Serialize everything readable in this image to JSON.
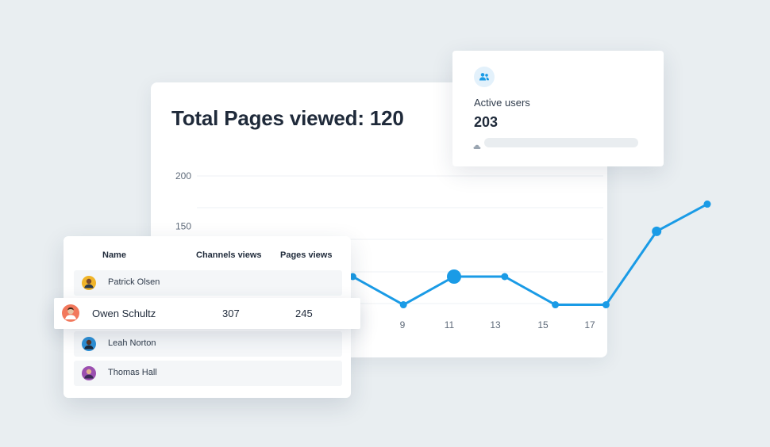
{
  "colors": {
    "accent": "#1a9be6",
    "background": "#e9eef1",
    "card": "#ffffff"
  },
  "chart": {
    "title": "Total Pages viewed: 120"
  },
  "chart_data": {
    "type": "line",
    "x": [
      1,
      2,
      3,
      4,
      5,
      6,
      7,
      8,
      9,
      10,
      11
    ],
    "x_tick_labels": [
      "9",
      "11",
      "13",
      "15",
      "17"
    ],
    "y_tick_labels": [
      "200",
      "150",
      "100"
    ],
    "values": [
      100,
      130,
      130,
      100,
      72,
      100,
      100,
      72,
      72,
      145,
      172
    ],
    "highlight_index": 5,
    "ylim": [
      0,
      200
    ],
    "grid": true
  },
  "active_users": {
    "icon": "users-icon",
    "label": "Active users",
    "value": "203",
    "status_icon": "cloud-icon"
  },
  "table": {
    "headers": {
      "name": "Name",
      "channels": "Channels views",
      "pages": "Pages views"
    },
    "rows": [
      {
        "name": "Patrick Olsen",
        "avatar_color": "#f0b429"
      },
      {
        "name": "Owen Schultz",
        "channels": "307",
        "pages": "245",
        "avatar_color": "#f2785c",
        "highlighted": true
      },
      {
        "name": "Leah Norton",
        "avatar_color": "#2d8fd5"
      },
      {
        "name": "Thomas Hall",
        "avatar_color": "#9b4fb0"
      }
    ]
  }
}
